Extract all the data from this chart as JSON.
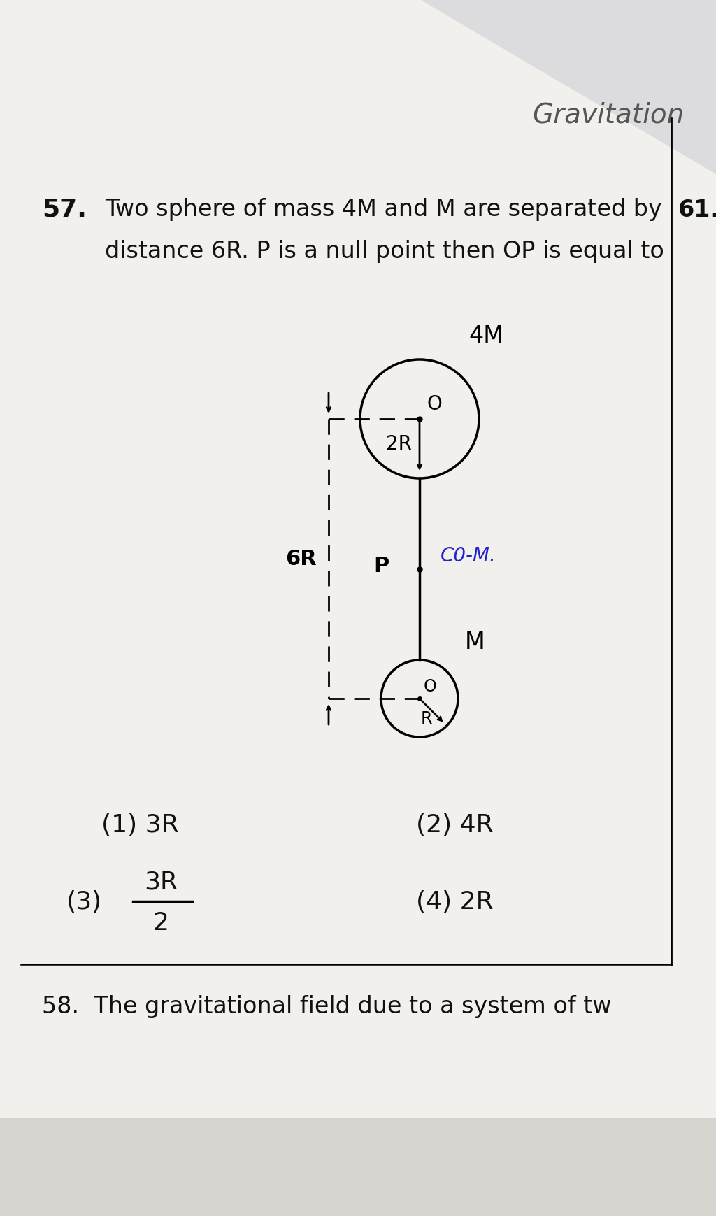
{
  "page_bg": "#e8e8e8",
  "paper_bg": "#f0eeeb",
  "shadow_bg": "#c0bebb",
  "dark_bg": "#a0a0a0",
  "text_color": "#111111",
  "blue_color": "#2222cc",
  "gravity_label": "Gravitation",
  "q57_num": "57.",
  "q57_line1": "Two sphere of mass 4M and M are separated by",
  "q57_line2": "distance 6R. P is a null point then OP is equal to",
  "right_num": "61.",
  "sphere1_label": "4M",
  "sphere1_O": "O",
  "sphere1_2R": "2R",
  "sphere2_label": "M",
  "sphere2_O": "O",
  "sphere2_R": "R",
  "sep_label": "6R",
  "p_label": "P",
  "com_label": "C0-M.",
  "opt1": "(1) 3R",
  "opt2": "(2) 4R",
  "opt3_pre": "(3)",
  "opt3_num": "3R",
  "opt3_den": "2",
  "opt4": "(4) 2R",
  "q58": "58.  The gravitational field due to a system of tw",
  "figsize": [
    10.24,
    17.4
  ],
  "dpi": 100
}
